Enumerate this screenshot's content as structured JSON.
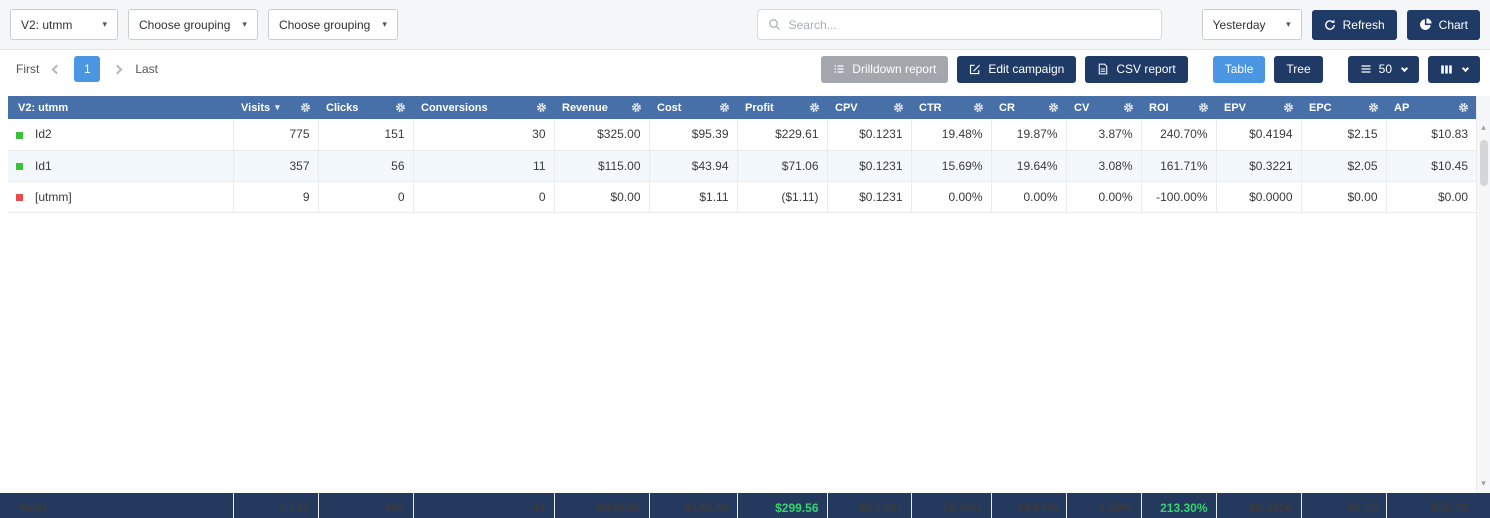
{
  "colors": {
    "header_blue": "#4770a8",
    "navy_button": "#203a66",
    "accent_blue": "#4a96e3",
    "total_bar_bg": "#24395e",
    "positive_green": "#27ae60",
    "negative_red": "#e74c3c",
    "status_green": "#3cc13b",
    "status_red": "#ea4a47"
  },
  "icons": {
    "search": "magnifier",
    "refresh": "circular-arrow",
    "chart": "pie-chart",
    "drilldown": "list-lines",
    "edit": "pencil-square",
    "csv": "document",
    "rows": "hamburger",
    "columns": "vertical-bars",
    "gear": "gear",
    "select_caret": "▾",
    "scroll_up": "▴",
    "scroll_down": "▾"
  },
  "toolbar": {
    "campaign_select": {
      "value": "V2: utmm"
    },
    "grouping_select_1": {
      "value": "Choose grouping"
    },
    "grouping_select_2": {
      "value": "Choose grouping"
    },
    "search": {
      "placeholder": "Search..."
    },
    "date_select": {
      "value": "Yesterday"
    },
    "refresh_button": "Refresh",
    "chart_button": "Chart"
  },
  "pagination": {
    "first_label": "First",
    "current_page": "1",
    "last_label": "Last"
  },
  "actions": {
    "drilldown_button": "Drilldown report",
    "edit_campaign_button": "Edit campaign",
    "csv_button": "CSV report",
    "table_toggle": "Table",
    "tree_toggle": "Tree",
    "rows_per_page": "50"
  },
  "table": {
    "first_col_header": "V2: utmm",
    "sort_column_index": 0,
    "columns": [
      "Visits",
      "Clicks",
      "Conversions",
      "Revenue",
      "Cost",
      "Profit",
      "CPV",
      "CTR",
      "CR",
      "CV",
      "ROI",
      "EPV",
      "EPC",
      "AP"
    ],
    "rows": [
      {
        "status": "green",
        "name": "Id2",
        "values": [
          "775",
          "151",
          "30",
          "$325.00",
          "$95.39",
          "$229.61",
          "$0.1231",
          "19.48%",
          "19.87%",
          "3.87%",
          "240.70%",
          "$0.4194",
          "$2.15",
          "$10.83"
        ],
        "profit_color": "green",
        "roi_color": "green"
      },
      {
        "status": "green",
        "name": "Id1",
        "values": [
          "357",
          "56",
          "11",
          "$115.00",
          "$43.94",
          "$71.06",
          "$0.1231",
          "15.69%",
          "19.64%",
          "3.08%",
          "161.71%",
          "$0.3221",
          "$2.05",
          "$10.45"
        ],
        "profit_color": "green",
        "roi_color": "green"
      },
      {
        "status": "red",
        "name": "[utmm]",
        "values": [
          "9",
          "0",
          "0",
          "$0.00",
          "$1.11",
          "($1.11)",
          "$0.1231",
          "0.00%",
          "0.00%",
          "0.00%",
          "-100.00%",
          "$0.0000",
          "$0.00",
          "$0.00"
        ],
        "profit_color": "red",
        "roi_color": "red"
      }
    ],
    "total": {
      "label": "Total",
      "values": [
        "1,141",
        "207",
        "41",
        "$440.00",
        "$140.44",
        "$299.56",
        "$0.1231",
        "18.14%",
        "19.81%",
        "3.59%",
        "213.30%",
        "$0.3856",
        "$2.13",
        "$10.73"
      ],
      "profit_color": "green",
      "roi_color": "green"
    }
  }
}
